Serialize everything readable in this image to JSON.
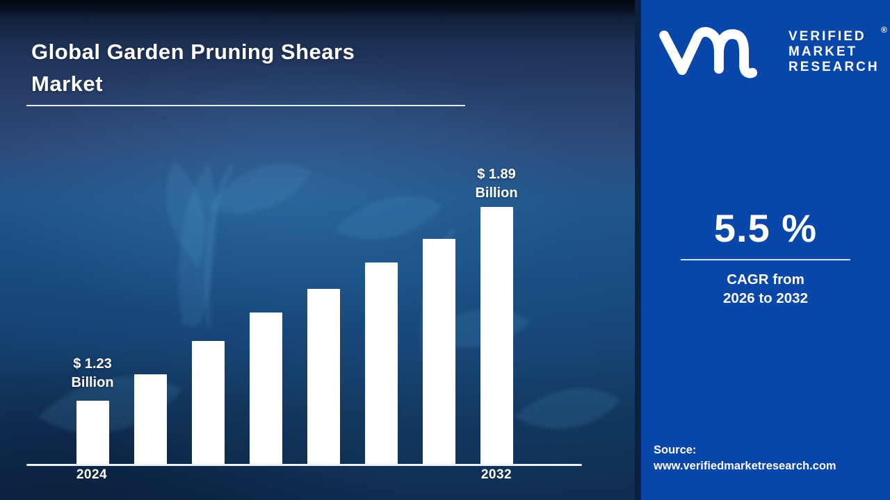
{
  "title": {
    "line1": "Global Garden Pruning Shears",
    "line2": "Market"
  },
  "logo": {
    "brand_line1": "VERIFIED",
    "brand_line2": "MARKET",
    "brand_line3": "RESEARCH",
    "registered_mark": "®",
    "mark_name": "vmr-monogram"
  },
  "right_panel": {
    "panel_color": "#0847A9",
    "cagr_value": "5.5 %",
    "cagr_caption_line1": "CAGR from",
    "cagr_caption_line2": "2026 to 2032",
    "source_label": "Source:",
    "source_url": "www.verifiedmarketresearch.com"
  },
  "chart_data": {
    "type": "bar",
    "title": "Global Garden Pruning Shears Market size (USD Billion)",
    "xlabel": "",
    "ylabel": "",
    "grid": false,
    "legend": "none",
    "bar_color": "#ffffff",
    "x_tick_labels_visible": [
      "2024",
      "2032"
    ],
    "first_bar_label": {
      "amount": "$ 1.23",
      "unit": "Billion"
    },
    "last_bar_label": {
      "amount": "$ 1.89",
      "unit": "Billion"
    },
    "values_estimated_for_unlabeled_bars": true,
    "bars": [
      {
        "x_label": "2024",
        "value": 1.23,
        "height_pct": 25.1
      },
      {
        "x_label": "",
        "value": 1.32,
        "height_pct": 35.1
      },
      {
        "x_label": "",
        "value": 1.43,
        "height_pct": 48.1
      },
      {
        "x_label": "",
        "value": 1.53,
        "height_pct": 59.2
      },
      {
        "x_label": "",
        "value": 1.61,
        "height_pct": 68.4
      },
      {
        "x_label": "",
        "value": 1.7,
        "height_pct": 78.4
      },
      {
        "x_label": "",
        "value": 1.78,
        "height_pct": 87.6
      },
      {
        "x_label": "2032",
        "value": 1.89,
        "height_pct": 100
      }
    ]
  }
}
